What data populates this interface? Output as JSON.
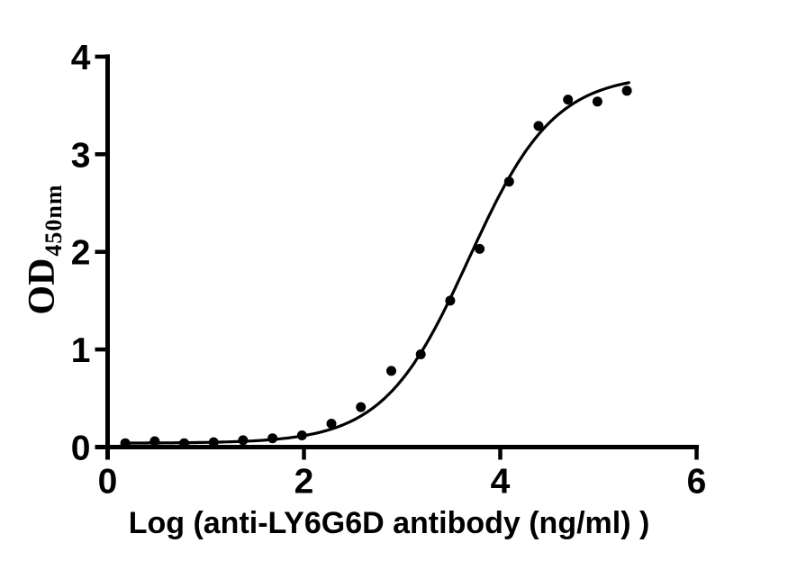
{
  "figure": {
    "background": "#ffffff"
  },
  "chart_data": {
    "type": "scatter",
    "title": "",
    "xlabel": "Log (anti-LY6G6D antibody (ng/ml) )",
    "ylabel_main": "OD",
    "ylabel_sub": "450nm",
    "xlim": [
      0,
      6
    ],
    "ylim": [
      0,
      4
    ],
    "xticks": [
      0,
      2,
      4,
      6
    ],
    "yticks": [
      0,
      1,
      2,
      3,
      4
    ],
    "grid": false,
    "legend": "none",
    "colors": {
      "axis": "#000000",
      "curve": "#000000",
      "marker": "#000000",
      "background": "#ffffff"
    },
    "marker": {
      "shape": "filled-circle"
    },
    "series": [
      {
        "x": [
          0.18,
          0.48,
          0.78,
          1.08,
          1.38,
          1.68,
          1.98,
          2.28,
          2.58,
          2.89,
          3.19,
          3.49,
          3.79,
          4.09,
          4.39,
          4.69,
          4.99,
          5.29
        ],
        "y": [
          0.04,
          0.06,
          0.04,
          0.05,
          0.07,
          0.09,
          0.12,
          0.24,
          0.41,
          0.78,
          0.95,
          1.5,
          2.03,
          2.72,
          3.29,
          3.56,
          3.54,
          3.65
        ]
      }
    ],
    "fit_curve": {
      "model": "4PL-logistic",
      "bottom": 0.04,
      "top": 3.82,
      "log_ec50": 3.68,
      "hill_slope": 1.0,
      "x_start": 0.18,
      "x_end": 5.33
    }
  }
}
